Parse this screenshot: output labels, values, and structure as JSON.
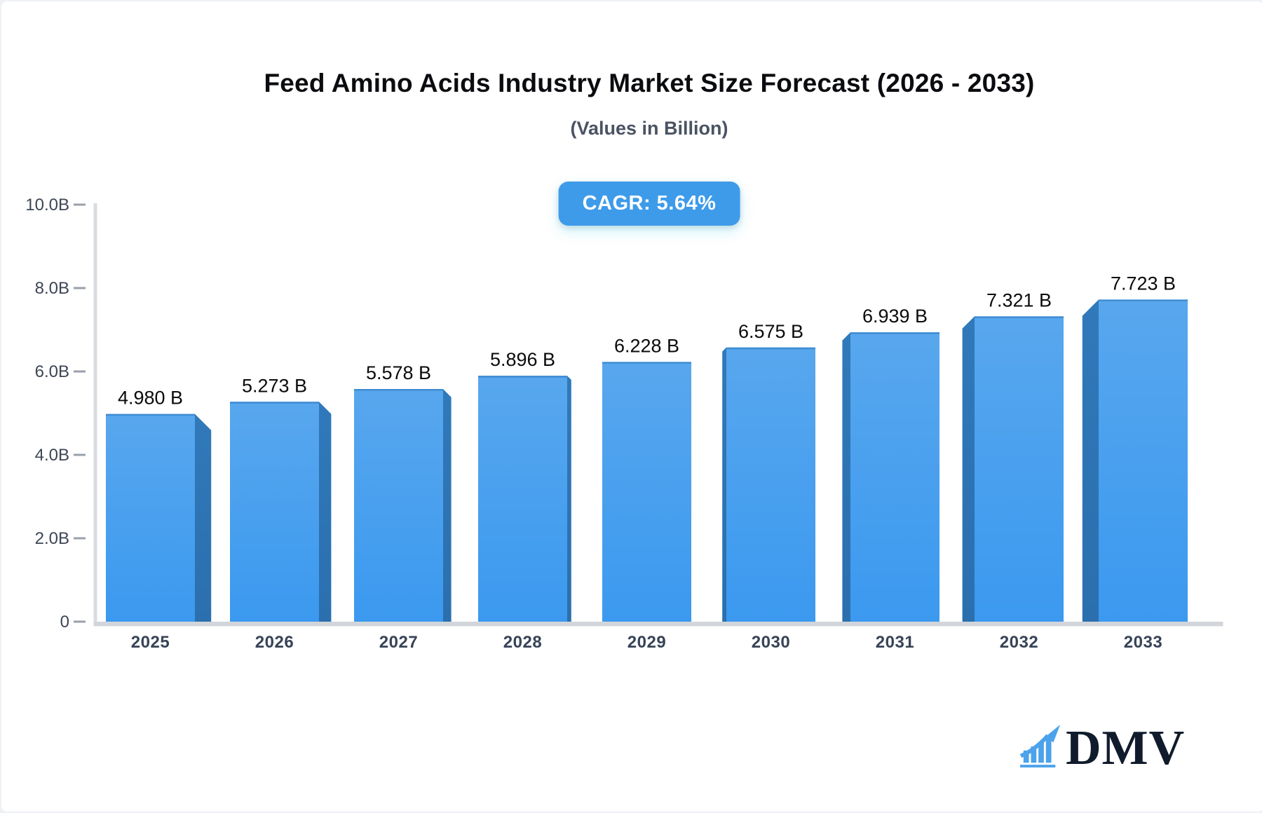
{
  "title": "Feed Amino Acids Industry Market Size Forecast (2026 - 2033)",
  "subtitle": "(Values in Billion)",
  "badge": {
    "label": "CAGR: 5.64%"
  },
  "logo": {
    "text": "DMV"
  },
  "colors": {
    "badge_bg": "#3e9be9",
    "bar_face_top": "#58a7ee",
    "bar_face_bottom": "#3b99ef",
    "bar_top_edge": "#3f8cd3",
    "bar_side_top": "#3079ba",
    "bar_side_bottom": "#2b6fae",
    "axis_line": "#d9dce1",
    "baseline": "#d2d6db",
    "tick": "#9aa0aa",
    "y_label": "#3d4654",
    "x_label": "#374357",
    "value_label": "#0b0b0d",
    "logo_icon": "#4ca2eb",
    "logo_text": "#101b2b"
  },
  "chart_data": {
    "type": "bar",
    "title": "Feed Amino Acids Industry Market Size Forecast (2026 - 2033)",
    "subtitle": "(Values in Billion)",
    "annotation": "CAGR: 5.64%",
    "categories": [
      "2025",
      "2026",
      "2027",
      "2028",
      "2029",
      "2030",
      "2031",
      "2032",
      "2033"
    ],
    "values": [
      4.98,
      5.273,
      5.578,
      5.896,
      6.228,
      6.575,
      6.939,
      7.321,
      7.723
    ],
    "value_labels": [
      "4.980 B",
      "5.273 B",
      "5.578 B",
      "5.896 B",
      "6.228 B",
      "6.575 B",
      "6.939 B",
      "7.321 B",
      "7.723 B"
    ],
    "xlabel": "",
    "ylabel": "",
    "ylim": [
      0,
      10
    ],
    "yticks": [
      0,
      2,
      4,
      6,
      8,
      10
    ],
    "ytick_labels": [
      "0",
      "2.0B",
      "4.0B",
      "6.0B",
      "8.0B",
      "10.0B"
    ],
    "grid": false,
    "legend": false,
    "style": "3d-extruded-bars, perspective converging to center bar"
  }
}
